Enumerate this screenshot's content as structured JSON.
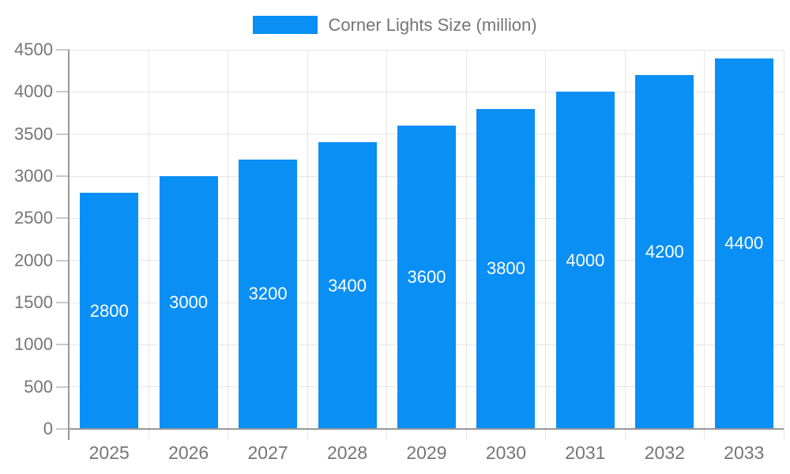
{
  "chart_data": {
    "type": "bar",
    "title": "Corner Lights Size (million)",
    "categories": [
      "2025",
      "2026",
      "2027",
      "2028",
      "2029",
      "2030",
      "2031",
      "2032",
      "2033"
    ],
    "series": [
      {
        "name": "Corner Lights Size (million)",
        "values": [
          2800,
          3000,
          3200,
          3400,
          3600,
          3800,
          4000,
          4200,
          4400
        ]
      }
    ],
    "xlabel": "",
    "ylabel": "",
    "ylim": [
      0,
      4500
    ],
    "yticks": [
      0,
      500,
      1000,
      1500,
      2000,
      2500,
      3000,
      3500,
      4000,
      4500
    ],
    "grid": true,
    "legend_position": "top-center",
    "value_labels": "inside-center",
    "colors": {
      "bar": "#0a8ff5",
      "grid": "#e6e6e6",
      "axis": "#999999",
      "tick": "#c9c9c9",
      "text": "#757575",
      "value_label": "#ffffff",
      "background": "#ffffff"
    }
  }
}
